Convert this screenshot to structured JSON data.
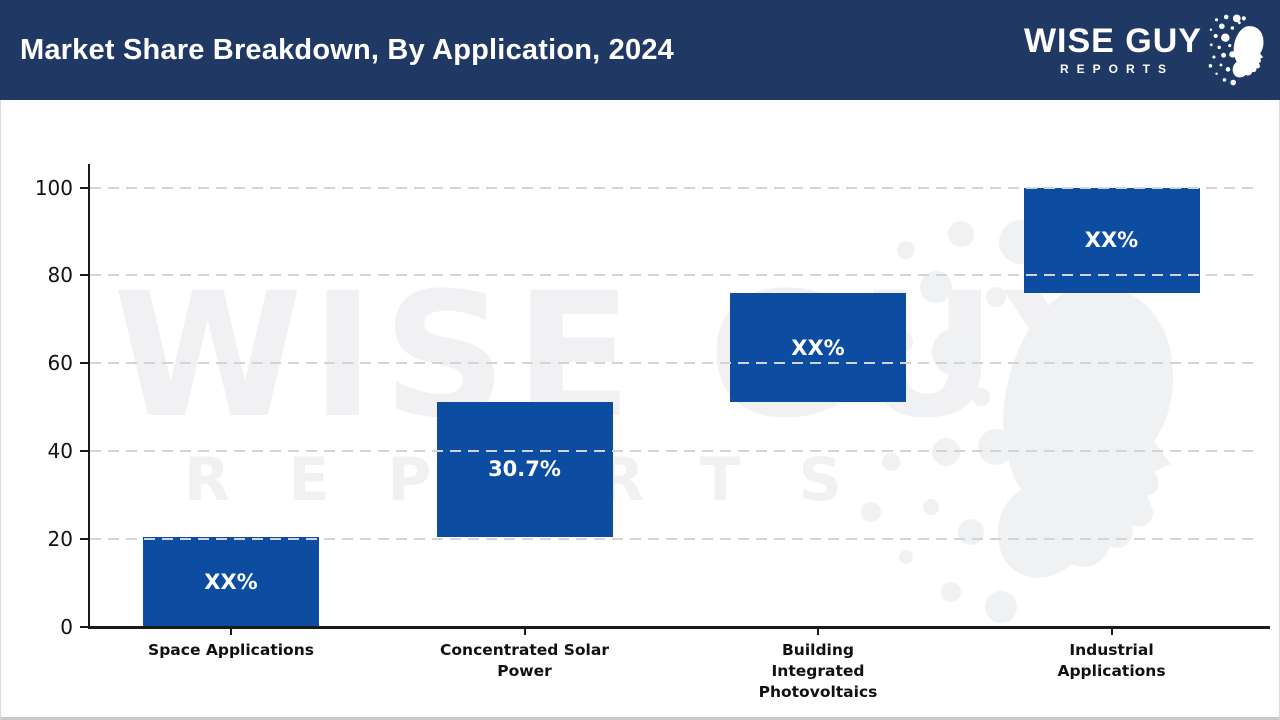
{
  "header": {
    "title": "Market Share Breakdown, By Application, 2024",
    "logo": {
      "brand": "WISE GUY",
      "sub": "REPORTS"
    }
  },
  "watermark": {
    "brand": "WISE GUY",
    "sub": "REPORTS"
  },
  "chart_data": {
    "type": "bar",
    "subtype": "floating-waterfall",
    "title": "Market Share Breakdown, By Application, 2024",
    "unit": "%",
    "categories": [
      "Space Applications",
      "Concentrated Solar Power",
      "Building Integrated Photovoltaics",
      "Industrial Applications"
    ],
    "bars": [
      {
        "category": "Space Applications",
        "label_lines": [
          "Space Applications"
        ],
        "start": 0,
        "end": 20.5,
        "value": 20.5,
        "data_label": "XX%"
      },
      {
        "category": "Concentrated Solar Power",
        "label_lines": [
          "Concentrated Solar",
          "Power"
        ],
        "start": 20.5,
        "end": 51.2,
        "value": 30.7,
        "data_label": "30.7%"
      },
      {
        "category": "Building Integrated Photovoltaics",
        "label_lines": [
          "Building",
          "Integrated",
          "Photovoltaics"
        ],
        "start": 51.2,
        "end": 76.0,
        "value": 24.8,
        "data_label": "XX%"
      },
      {
        "category": "Industrial Applications",
        "label_lines": [
          "Industrial",
          "Applications"
        ],
        "start": 76.0,
        "end": 100,
        "value": 24.0,
        "data_label": "XX%"
      }
    ],
    "yticks": [
      0,
      20,
      40,
      60,
      80,
      100
    ],
    "ylim": [
      0,
      100
    ],
    "grid": {
      "horizontal": true,
      "style": "dashed",
      "above_bars": true
    },
    "legend": null
  },
  "colors": {
    "header_bg": "#1f3864",
    "bar_fill": "#0c4da2",
    "bar_label": "#ffffff",
    "gridline": "#d4d4d4",
    "axis": "#1a1a1a",
    "watermark": "#f1f1f3",
    "bottom_rule": "#c9c9c9"
  }
}
